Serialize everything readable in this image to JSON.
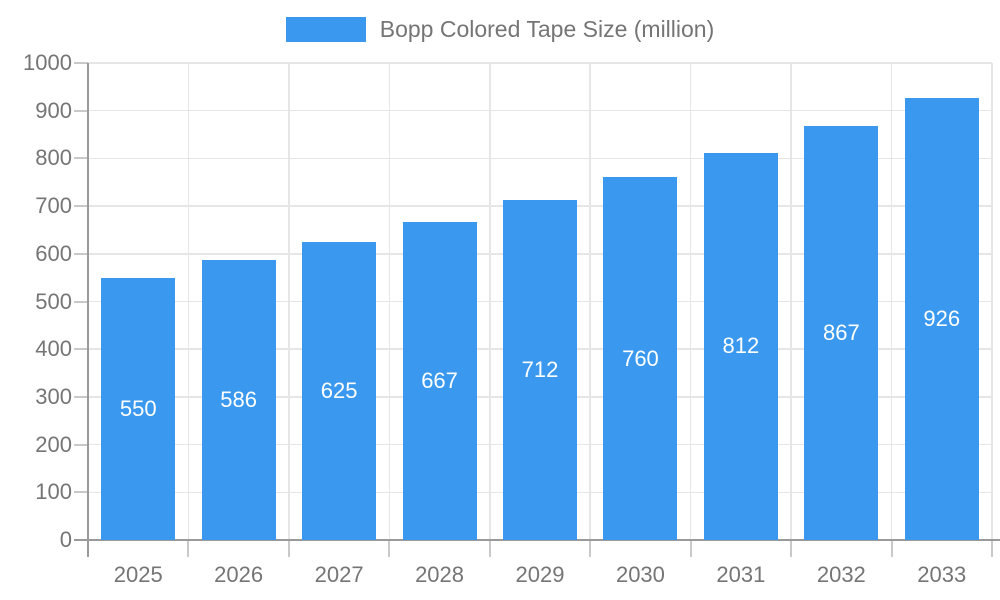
{
  "chart_data": {
    "type": "bar",
    "title": "Bopp Colored Tape Size (million)",
    "categories": [
      "2025",
      "2026",
      "2027",
      "2028",
      "2029",
      "2030",
      "2031",
      "2032",
      "2033"
    ],
    "values": [
      550,
      586,
      625,
      667,
      712,
      760,
      812,
      867,
      926
    ],
    "xlabel": "",
    "ylabel": "",
    "ylim": [
      0,
      1000
    ],
    "ytick_step": 100,
    "grid": true,
    "legend_position": "top-center",
    "value_labels": "inside-center",
    "colors": {
      "bar": "#3a99ee",
      "value_label": "#ffffff",
      "axis_text": "#757575",
      "grid_line": "#e6e6e6",
      "axis_line": "#9a9a9a",
      "tick_line": "#c9c9c9",
      "background": "#ffffff"
    }
  }
}
